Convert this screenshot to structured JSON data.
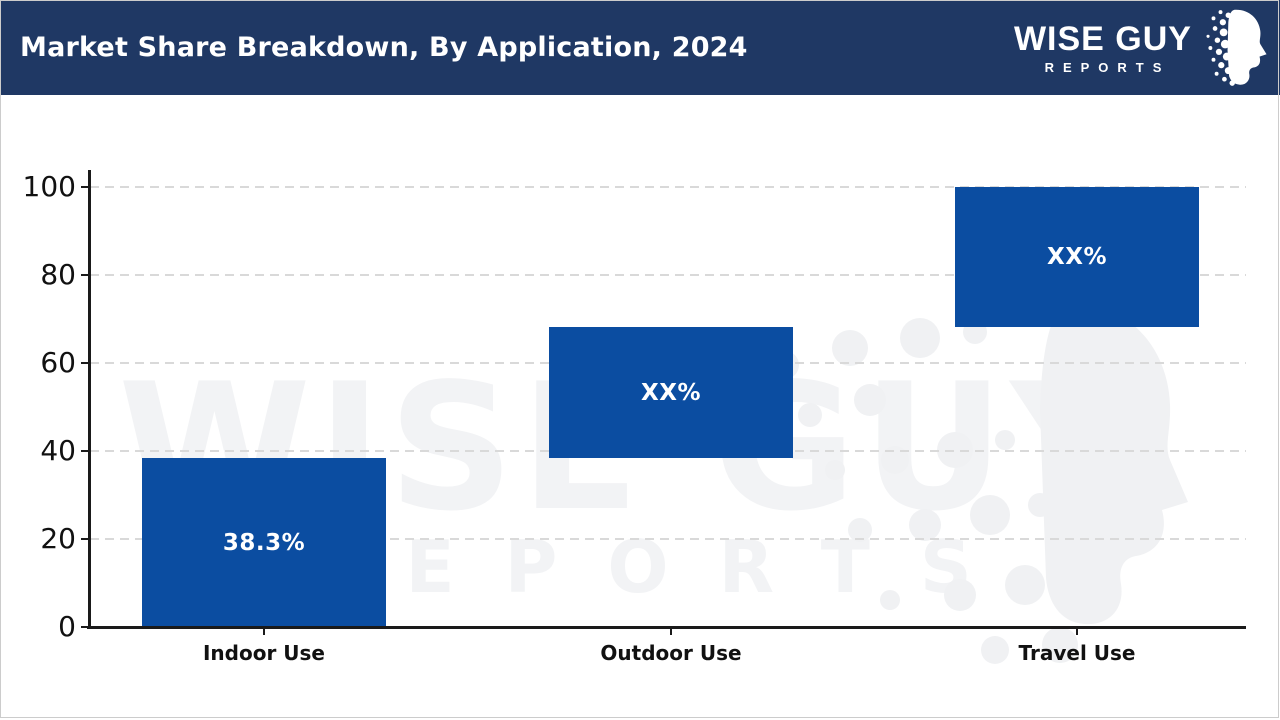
{
  "page": {
    "background": "#ffffff",
    "border_color": "#cccccc"
  },
  "header": {
    "background": "#1f3864",
    "title": "Market Share Breakdown, By Application, 2024",
    "logo": {
      "line1": "WISE GUY",
      "line2": "REPORTS"
    }
  },
  "watermark": {
    "line1": "WISE GUY",
    "line2": "REPORTS"
  },
  "chart_data": {
    "type": "bar",
    "subtype": "waterfall-floating-bars",
    "title": "Market Share Breakdown, By Application, 2024",
    "categories": [
      "Indoor Use",
      "Outdoor Use",
      "Travel Use"
    ],
    "series": [
      {
        "name": "Market Share",
        "segments": [
          {
            "category": "Indoor Use",
            "start": 0,
            "end": 38.3,
            "label": "38.3%"
          },
          {
            "category": "Outdoor Use",
            "start": 38.3,
            "end": 68.2,
            "label": "XX%"
          },
          {
            "category": "Travel Use",
            "start": 68.2,
            "end": 100,
            "label": "XX%"
          }
        ]
      }
    ],
    "xlabel": "",
    "ylabel": "",
    "ylim": [
      0,
      100
    ],
    "yticks": [
      0,
      20,
      40,
      60,
      80,
      100
    ],
    "grid": "horizontal-dashed",
    "legend": "none",
    "bar_color": "#0b4da1",
    "bar_label_color": "#ffffff",
    "axis_color": "#1a1a1a",
    "grid_color": "#d9d9d9",
    "tick_label_color": "#111111"
  }
}
